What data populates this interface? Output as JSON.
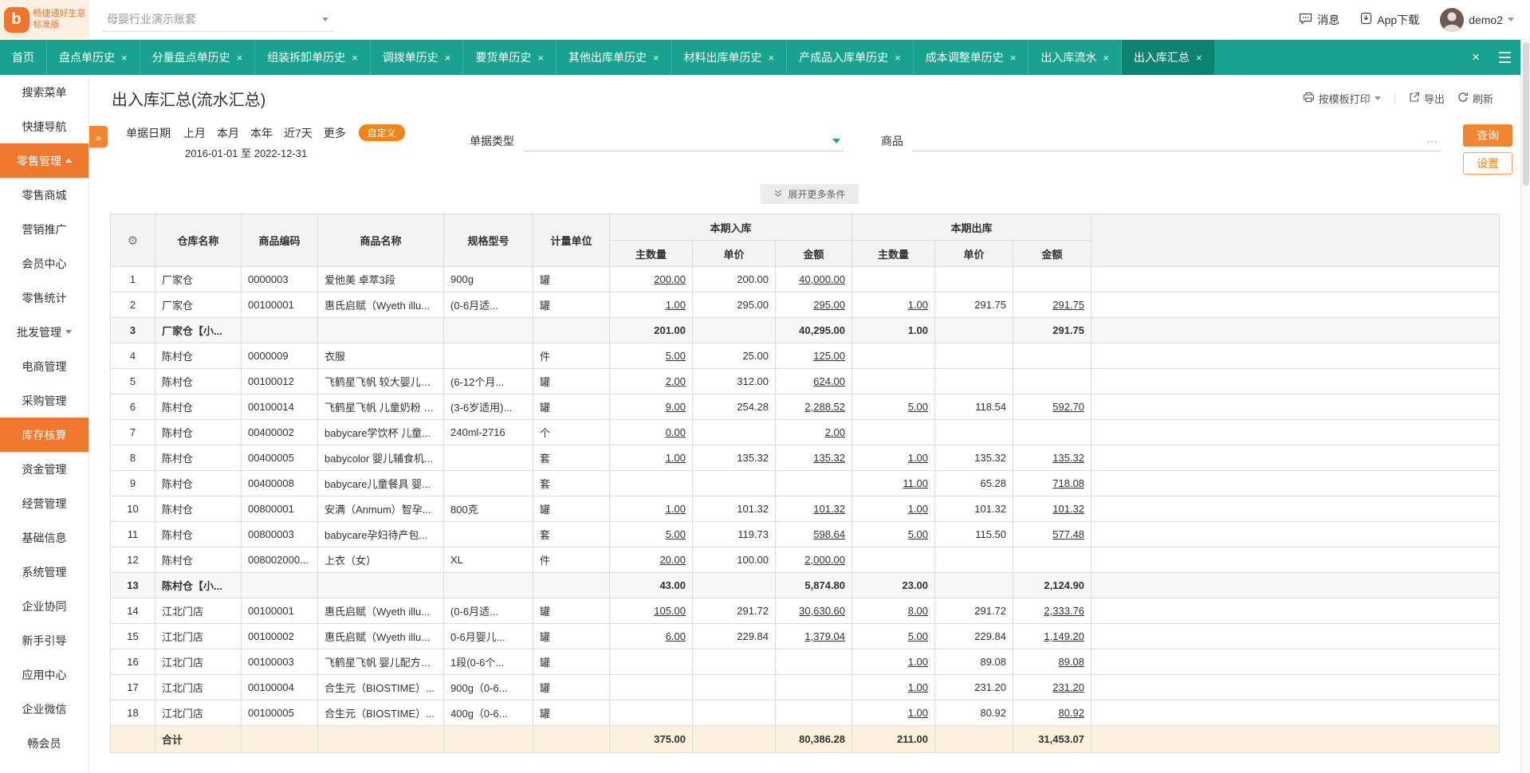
{
  "topbar": {
    "logo_glyph": "b",
    "logo_title": "畅捷通好生意",
    "logo_edition": "标准版",
    "account_value": "母婴行业演示账套",
    "messages_label": "消息",
    "app_download_label": "App下载",
    "username": "demo2"
  },
  "tabbar": {
    "tabs": [
      {
        "label": "首页",
        "closable": false,
        "active": false
      },
      {
        "label": "盘点单历史",
        "closable": true,
        "active": false
      },
      {
        "label": "分量盘点单历史",
        "closable": true,
        "active": false
      },
      {
        "label": "组装拆卸单历史",
        "closable": true,
        "active": false
      },
      {
        "label": "调拨单历史",
        "closable": true,
        "active": false
      },
      {
        "label": "要货单历史",
        "closable": true,
        "active": false
      },
      {
        "label": "其他出库单历史",
        "closable": true,
        "active": false
      },
      {
        "label": "材料出库单历史",
        "closable": true,
        "active": false
      },
      {
        "label": "产成品入库单历史",
        "closable": true,
        "active": false
      },
      {
        "label": "成本调整单历史",
        "closable": true,
        "active": false
      },
      {
        "label": "出入库流水",
        "closable": true,
        "active": false
      },
      {
        "label": "出入库汇总",
        "closable": true,
        "active": true
      }
    ]
  },
  "sidebar": {
    "items": [
      {
        "label": "搜索菜单",
        "type": "plain"
      },
      {
        "label": "快捷导航",
        "type": "plain"
      },
      {
        "label": "零售管理",
        "type": "group-open"
      },
      {
        "label": "零售商城",
        "type": "sub"
      },
      {
        "label": "营销推广",
        "type": "sub"
      },
      {
        "label": "会员中心",
        "type": "sub"
      },
      {
        "label": "零售统计",
        "type": "sub"
      },
      {
        "label": "批发管理",
        "type": "group-closed"
      },
      {
        "label": "电商管理",
        "type": "plain"
      },
      {
        "label": "采购管理",
        "type": "plain"
      },
      {
        "label": "库存核算",
        "type": "active"
      },
      {
        "label": "资金管理",
        "type": "plain"
      },
      {
        "label": "经营管理",
        "type": "plain"
      },
      {
        "label": "基础信息",
        "type": "plain"
      },
      {
        "label": "系统管理",
        "type": "plain"
      },
      {
        "label": "企业协同",
        "type": "plain"
      },
      {
        "label": "新手引导",
        "type": "plain"
      },
      {
        "label": "应用中心",
        "type": "plain"
      },
      {
        "label": "企业微信",
        "type": "plain"
      },
      {
        "label": "畅会员",
        "type": "plain"
      }
    ]
  },
  "page": {
    "title": "出入库汇总(流水汇总)",
    "print_label": "按模板打印",
    "export_label": "导出",
    "refresh_label": "刷新"
  },
  "filters": {
    "date_label": "单据日期",
    "date_options": [
      "上月",
      "本月",
      "本年",
      "近7天",
      "更多"
    ],
    "custom_badge": "自定义",
    "date_range": "2016-01-01 至 2022-12-31",
    "doc_type_label": "单据类型",
    "product_label": "商品",
    "product_more": "…",
    "query_button": "查询",
    "settings_button": "设置",
    "expand_more": "展开更多条件"
  },
  "table": {
    "headers": {
      "warehouse": "仓库名称",
      "code": "商品编码",
      "name": "商品名称",
      "spec": "规格型号",
      "unit": "计量单位",
      "in_group": "本期入库",
      "out_group": "本期出库",
      "qty": "主数量",
      "price": "单价",
      "amount": "金额"
    },
    "rows": [
      {
        "type": "data",
        "cells": [
          "1",
          "厂家仓",
          "0000003",
          "爱他美 卓萃3段",
          "900g",
          "罐",
          "200.00",
          "200.00",
          "40,000.00",
          "",
          "",
          ""
        ]
      },
      {
        "type": "data",
        "cells": [
          "2",
          "厂家仓",
          "00100001",
          "惠氏启赋（Wyeth illu...",
          "(0-6月适...",
          "罐",
          "1.00",
          "295.00",
          "295.00",
          "1.00",
          "291.75",
          "291.75"
        ]
      },
      {
        "type": "group",
        "cells": [
          "3",
          "厂家仓【小...",
          "",
          "",
          "",
          "",
          "201.00",
          "",
          "40,295.00",
          "1.00",
          "",
          "291.75"
        ]
      },
      {
        "type": "data",
        "cells": [
          "4",
          "陈村仓",
          "0000009",
          "衣服",
          "",
          "件",
          "5.00",
          "25.00",
          "125.00",
          "",
          "",
          ""
        ]
      },
      {
        "type": "data",
        "cells": [
          "5",
          "陈村仓",
          "00100012",
          "飞鹤星飞帆 较大婴儿配...",
          "(6-12个月...",
          "罐",
          "2.00",
          "312.00",
          "624.00",
          "",
          "",
          ""
        ]
      },
      {
        "type": "data",
        "cells": [
          "6",
          "陈村仓",
          "00100014",
          "飞鹤星飞帆 儿童奶粉 4...",
          "(3-6岁适用)...",
          "罐",
          "9.00",
          "254.28",
          "2,288.52",
          "5.00",
          "118.54",
          "592.70"
        ]
      },
      {
        "type": "data",
        "cells": [
          "7",
          "陈村仓",
          "00400002",
          "babycare学饮杯 儿童...",
          "240ml-2716",
          "个",
          "0.00",
          "",
          "2.00",
          "",
          "",
          ""
        ]
      },
      {
        "type": "data",
        "cells": [
          "8",
          "陈村仓",
          "00400005",
          "babycolor 婴儿辅食机...",
          "",
          "套",
          "1.00",
          "135.32",
          "135.32",
          "1.00",
          "135.32",
          "135.32"
        ]
      },
      {
        "type": "data",
        "cells": [
          "9",
          "陈村仓",
          "00400008",
          "babycare儿童餐具 婴...",
          "",
          "套",
          "",
          "",
          "",
          "11.00",
          "65.28",
          "718.08"
        ]
      },
      {
        "type": "data",
        "cells": [
          "10",
          "陈村仓",
          "00800001",
          "安满（Anmum）智孕...",
          "800克",
          "罐",
          "1.00",
          "101.32",
          "101.32",
          "1.00",
          "101.32",
          "101.32"
        ]
      },
      {
        "type": "data",
        "cells": [
          "11",
          "陈村仓",
          "00800003",
          "babycare孕妇待产包...",
          "",
          "套",
          "5.00",
          "119.73",
          "598.64",
          "5.00",
          "115.50",
          "577.48"
        ]
      },
      {
        "type": "data",
        "cells": [
          "12",
          "陈村仓",
          "008002000...",
          "上衣（女）",
          "XL",
          "件",
          "20.00",
          "100.00",
          "2,000.00",
          "",
          "",
          ""
        ]
      },
      {
        "type": "group",
        "cells": [
          "13",
          "陈村仓【小...",
          "",
          "",
          "",
          "",
          "43.00",
          "",
          "5,874.80",
          "23.00",
          "",
          "2,124.90"
        ]
      },
      {
        "type": "data",
        "cells": [
          "14",
          "江北门店",
          "00100001",
          "惠氏启赋（Wyeth illu...",
          "(0-6月适...",
          "罐",
          "105.00",
          "291.72",
          "30,630.60",
          "8.00",
          "291.72",
          "2,333.76"
        ]
      },
      {
        "type": "data",
        "cells": [
          "15",
          "江北门店",
          "00100002",
          "惠氏启赋（Wyeth illu...",
          "0-6月婴儿...",
          "罐",
          "6.00",
          "229.84",
          "1,379.04",
          "5.00",
          "229.84",
          "1,149.20"
        ]
      },
      {
        "type": "data",
        "cells": [
          "16",
          "江北门店",
          "00100003",
          "飞鹤星飞帆 婴儿配方奶...",
          "1段(0-6个...",
          "罐",
          "",
          "",
          "",
          "1.00",
          "89.08",
          "89.08"
        ]
      },
      {
        "type": "data",
        "cells": [
          "17",
          "江北门店",
          "00100004",
          "合生元（BIOSTIME）...",
          "900g（0-6...",
          "罐",
          "",
          "",
          "",
          "1.00",
          "231.20",
          "231.20"
        ]
      },
      {
        "type": "data",
        "cells": [
          "18",
          "江北门店",
          "00100005",
          "合生元（BIOSTIME）...",
          "400g（0-6...",
          "罐",
          "",
          "",
          "",
          "1.00",
          "80.92",
          "80.92"
        ]
      }
    ],
    "total": {
      "label": "合计",
      "in_qty": "375.00",
      "in_amount": "80,386.28",
      "out_qty": "211.00",
      "out_amount": "31,453.07"
    }
  },
  "colors": {
    "teal": "#18a38e",
    "teal_active": "#0b8371",
    "orange": "#f0772e",
    "orange_button": "#f2862f",
    "total_row_bg": "#fcf1dc"
  }
}
